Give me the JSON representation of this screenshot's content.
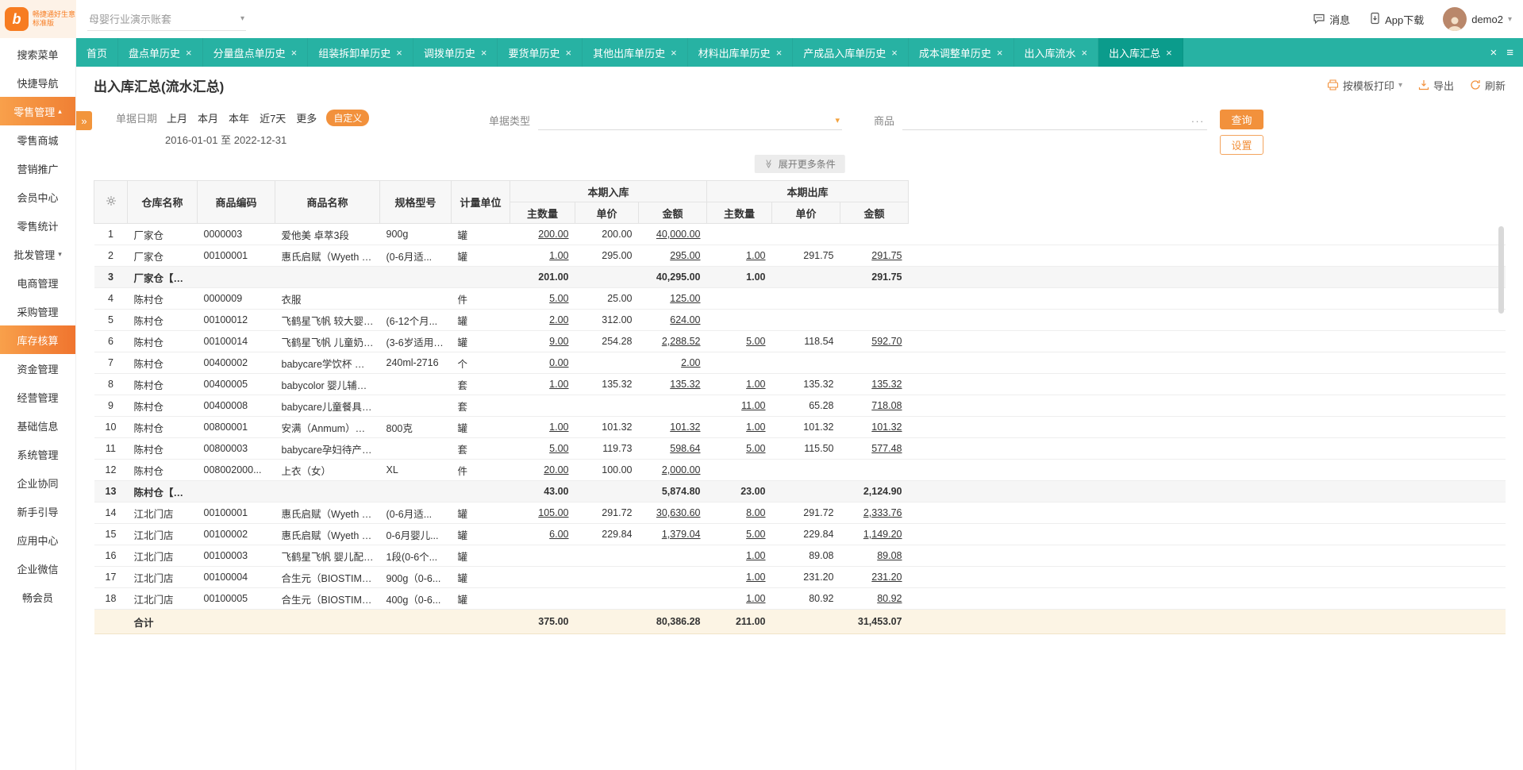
{
  "topbar": {
    "logo_name": "畅捷通好生意",
    "logo_edition": "标准版",
    "account": "母婴行业演示账套",
    "messages": "消息",
    "app_download": "App下载",
    "user": "demo2"
  },
  "tabs": [
    {
      "label": "首页",
      "closable": false,
      "active": false
    },
    {
      "label": "盘点单历史",
      "closable": true,
      "active": false
    },
    {
      "label": "分量盘点单历史",
      "closable": true,
      "active": false
    },
    {
      "label": "组装拆卸单历史",
      "closable": true,
      "active": false
    },
    {
      "label": "调拨单历史",
      "closable": true,
      "active": false
    },
    {
      "label": "要货单历史",
      "closable": true,
      "active": false
    },
    {
      "label": "其他出库单历史",
      "closable": true,
      "active": false
    },
    {
      "label": "材料出库单历史",
      "closable": true,
      "active": false
    },
    {
      "label": "产成品入库单历史",
      "closable": true,
      "active": false
    },
    {
      "label": "成本调整单历史",
      "closable": true,
      "active": false
    },
    {
      "label": "出入库流水",
      "closable": true,
      "active": false
    },
    {
      "label": "出入库汇总",
      "closable": true,
      "active": true
    }
  ],
  "sidebar": [
    {
      "label": "搜索菜单",
      "style": "plain"
    },
    {
      "label": "快捷导航",
      "style": "plain"
    },
    {
      "label": "零售管理",
      "style": "orange-open"
    },
    {
      "label": "零售商城",
      "style": "plain"
    },
    {
      "label": "营销推广",
      "style": "plain"
    },
    {
      "label": "会员中心",
      "style": "plain"
    },
    {
      "label": "零售统计",
      "style": "plain"
    },
    {
      "label": "批发管理",
      "style": "collapsed"
    },
    {
      "label": "电商管理",
      "style": "plain"
    },
    {
      "label": "采购管理",
      "style": "plain"
    },
    {
      "label": "库存核算",
      "style": "orange-active"
    },
    {
      "label": "资金管理",
      "style": "plain"
    },
    {
      "label": "经营管理",
      "style": "plain"
    },
    {
      "label": "基础信息",
      "style": "plain"
    },
    {
      "label": "系统管理",
      "style": "plain"
    },
    {
      "label": "企业协同",
      "style": "plain"
    },
    {
      "label": "新手引导",
      "style": "plain"
    },
    {
      "label": "应用中心",
      "style": "plain"
    },
    {
      "label": "企业微信",
      "style": "plain"
    },
    {
      "label": "畅会员",
      "style": "plain"
    }
  ],
  "page": {
    "title": "出入库汇总(流水汇总)",
    "toolbar": {
      "print": "按模板打印",
      "export": "导出",
      "refresh": "刷新"
    }
  },
  "filters": {
    "date_label": "单据日期",
    "quick_ranges": [
      "上月",
      "本月",
      "本年",
      "近7天",
      "更多"
    ],
    "custom": "自定义",
    "date_range": "2016-01-01 至 2022-12-31",
    "doc_type_label": "单据类型",
    "product_label": "商品",
    "product_more": "...",
    "search": "查询",
    "settings": "设置",
    "expand": "展开更多条件"
  },
  "table": {
    "headers": {
      "warehouse": "仓库名称",
      "code": "商品编码",
      "name": "商品名称",
      "spec": "规格型号",
      "unit": "计量单位",
      "in_group": "本期入库",
      "out_group": "本期出库",
      "qty": "主数量",
      "price": "单价",
      "amount": "金额"
    },
    "rows": [
      {
        "no": "1",
        "warehouse": "厂家仓",
        "code": "0000003",
        "name": "爱他美 卓萃3段",
        "spec": "900g",
        "unit": "罐",
        "in_qty": "200.00",
        "in_price": "200.00",
        "in_amount": "40,000.00",
        "out_qty": "",
        "out_price": "",
        "out_amount": "",
        "type": "data"
      },
      {
        "no": "2",
        "warehouse": "厂家仓",
        "code": "00100001",
        "name": "惠氏启赋（Wyeth illu...",
        "spec": "(0-6月适...",
        "unit": "罐",
        "in_qty": "1.00",
        "in_price": "295.00",
        "in_amount": "295.00",
        "out_qty": "1.00",
        "out_price": "291.75",
        "out_amount": "291.75",
        "type": "data"
      },
      {
        "no": "3",
        "warehouse": "厂家仓【小...",
        "code": "",
        "name": "",
        "spec": "",
        "unit": "",
        "in_qty": "201.00",
        "in_price": "",
        "in_amount": "40,295.00",
        "out_qty": "1.00",
        "out_price": "",
        "out_amount": "291.75",
        "type": "subtotal"
      },
      {
        "no": "4",
        "warehouse": "陈村仓",
        "code": "0000009",
        "name": "衣服",
        "spec": "",
        "unit": "件",
        "in_qty": "5.00",
        "in_price": "25.00",
        "in_amount": "125.00",
        "out_qty": "",
        "out_price": "",
        "out_amount": "",
        "type": "data"
      },
      {
        "no": "5",
        "warehouse": "陈村仓",
        "code": "00100012",
        "name": "飞鹤星飞帆 较大婴儿配...",
        "spec": "(6-12个月...",
        "unit": "罐",
        "in_qty": "2.00",
        "in_price": "312.00",
        "in_amount": "624.00",
        "out_qty": "",
        "out_price": "",
        "out_amount": "",
        "type": "data"
      },
      {
        "no": "6",
        "warehouse": "陈村仓",
        "code": "00100014",
        "name": "飞鹤星飞帆 儿童奶粉 4...",
        "spec": "(3-6岁适用)...",
        "unit": "罐",
        "in_qty": "9.00",
        "in_price": "254.28",
        "in_amount": "2,288.52",
        "out_qty": "5.00",
        "out_price": "118.54",
        "out_amount": "592.70",
        "type": "data"
      },
      {
        "no": "7",
        "warehouse": "陈村仓",
        "code": "00400002",
        "name": "babycare学饮杯 儿童...",
        "spec": "240ml-2716",
        "unit": "个",
        "in_qty": "0.00",
        "in_price": "",
        "in_amount": "2.00",
        "out_qty": "",
        "out_price": "",
        "out_amount": "",
        "type": "data"
      },
      {
        "no": "8",
        "warehouse": "陈村仓",
        "code": "00400005",
        "name": "babycolor 婴儿辅食机 ...",
        "spec": "",
        "unit": "套",
        "in_qty": "1.00",
        "in_price": "135.32",
        "in_amount": "135.32",
        "out_qty": "1.00",
        "out_price": "135.32",
        "out_amount": "135.32",
        "type": "data"
      },
      {
        "no": "9",
        "warehouse": "陈村仓",
        "code": "00400008",
        "name": "babycare儿童餐具 婴...",
        "spec": "",
        "unit": "套",
        "in_qty": "",
        "in_price": "",
        "in_amount": "",
        "out_qty": "11.00",
        "out_price": "65.28",
        "out_amount": "718.08",
        "type": "data"
      },
      {
        "no": "10",
        "warehouse": "陈村仓",
        "code": "00800001",
        "name": "安满（Anmum）智孕...",
        "spec": "800克",
        "unit": "罐",
        "in_qty": "1.00",
        "in_price": "101.32",
        "in_amount": "101.32",
        "out_qty": "1.00",
        "out_price": "101.32",
        "out_amount": "101.32",
        "type": "data"
      },
      {
        "no": "11",
        "warehouse": "陈村仓",
        "code": "00800003",
        "name": "babycare孕妇待产包 ...",
        "spec": "",
        "unit": "套",
        "in_qty": "5.00",
        "in_price": "119.73",
        "in_amount": "598.64",
        "out_qty": "5.00",
        "out_price": "115.50",
        "out_amount": "577.48",
        "type": "data"
      },
      {
        "no": "12",
        "warehouse": "陈村仓",
        "code": "008002000...",
        "name": "上衣（女）",
        "spec": "XL",
        "unit": "件",
        "in_qty": "20.00",
        "in_price": "100.00",
        "in_amount": "2,000.00",
        "out_qty": "",
        "out_price": "",
        "out_amount": "",
        "type": "data"
      },
      {
        "no": "13",
        "warehouse": "陈村仓【小...",
        "code": "",
        "name": "",
        "spec": "",
        "unit": "",
        "in_qty": "43.00",
        "in_price": "",
        "in_amount": "5,874.80",
        "out_qty": "23.00",
        "out_price": "",
        "out_amount": "2,124.90",
        "type": "subtotal"
      },
      {
        "no": "14",
        "warehouse": "江北门店",
        "code": "00100001",
        "name": "惠氏启赋（Wyeth illu...",
        "spec": "(0-6月适...",
        "unit": "罐",
        "in_qty": "105.00",
        "in_price": "291.72",
        "in_amount": "30,630.60",
        "out_qty": "8.00",
        "out_price": "291.72",
        "out_amount": "2,333.76",
        "type": "data"
      },
      {
        "no": "15",
        "warehouse": "江北门店",
        "code": "00100002",
        "name": "惠氏启赋（Wyeth illu...",
        "spec": "0-6月婴儿...",
        "unit": "罐",
        "in_qty": "6.00",
        "in_price": "229.84",
        "in_amount": "1,379.04",
        "out_qty": "5.00",
        "out_price": "229.84",
        "out_amount": "1,149.20",
        "type": "data"
      },
      {
        "no": "16",
        "warehouse": "江北门店",
        "code": "00100003",
        "name": "飞鹤星飞帆 婴儿配方奶...",
        "spec": "1段(0-6个...",
        "unit": "罐",
        "in_qty": "",
        "in_price": "",
        "in_amount": "",
        "out_qty": "1.00",
        "out_price": "89.08",
        "out_amount": "89.08",
        "type": "data"
      },
      {
        "no": "17",
        "warehouse": "江北门店",
        "code": "00100004",
        "name": "合生元（BIOSTIME） ...",
        "spec": "900g（0-6...",
        "unit": "罐",
        "in_qty": "",
        "in_price": "",
        "in_amount": "",
        "out_qty": "1.00",
        "out_price": "231.20",
        "out_amount": "231.20",
        "type": "data"
      },
      {
        "no": "18",
        "warehouse": "江北门店",
        "code": "00100005",
        "name": "合生元（BIOSTIME） ...",
        "spec": "400g（0-6...",
        "unit": "罐",
        "in_qty": "",
        "in_price": "",
        "in_amount": "",
        "out_qty": "1.00",
        "out_price": "80.92",
        "out_amount": "80.92",
        "type": "data"
      },
      {
        "no": "",
        "warehouse": "合计",
        "code": "",
        "name": "",
        "spec": "",
        "unit": "",
        "in_qty": "375.00",
        "in_price": "",
        "in_amount": "80,386.28",
        "out_qty": "211.00",
        "out_price": "",
        "out_amount": "31,453.07",
        "type": "total"
      }
    ]
  },
  "colors": {
    "teal": "#27b2a3",
    "teal_active": "#0b9c8c",
    "orange": "#f2913c"
  }
}
